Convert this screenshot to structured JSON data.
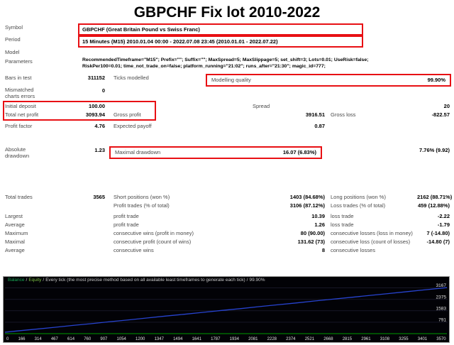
{
  "title": "GBPCHF Fix lot 2010-2022",
  "header": {
    "symbol": {
      "label": "Symbol",
      "value": "GBPCHF (Great Britain Pound vs Swiss Franc)"
    },
    "period": {
      "label": "Period",
      "value": "15 Minutes (M15) 2010.01.04 00:00 - 2022.07.08 23:45 (2010.01.01 - 2022.07.22)"
    },
    "model": {
      "label": "Model",
      "value": ""
    },
    "parameters": {
      "label": "Parameters",
      "line1": "RecommendedTimeframe=\"M15\"; Prefix=\"\"; Suffix=\"\"; MaxSpread=5; MaxSlippage=5; set_shift=3; Lots=0.01; UseRisk=false;",
      "line2": "RiskPer100=0.01; time_not_trade_on=false; platform_running=\"21:02\"; runs_after=\"21:30\"; magic_id=777;"
    }
  },
  "stats": {
    "bars_in_test": {
      "label": "Bars in test",
      "value": "311152"
    },
    "ticks_modelled": {
      "label": "Ticks modelled",
      "value": ""
    },
    "modelling_quality": {
      "label": "Modelling quality",
      "value": "99.90%"
    },
    "mismatched_charts_errors": {
      "label": "Mismatched charts errors",
      "value": "0"
    },
    "initial_deposit": {
      "label": "Initial deposit",
      "value": "100.00"
    },
    "spread": {
      "label": "Spread",
      "value": "20"
    },
    "total_net_profit": {
      "label": "Total net profit",
      "value": "3093.94"
    },
    "gross_profit": {
      "label": "Gross profit",
      "value": "3916.51"
    },
    "gross_loss": {
      "label": "Gross loss",
      "value": "-822.57"
    },
    "profit_factor": {
      "label": "Profit factor",
      "value": "4.76"
    },
    "expected_payoff": {
      "label": "Expected payoff",
      "value": "0.87"
    },
    "absolute_drawdown": {
      "label": "Absolute drawdown",
      "value": "1.23"
    },
    "maximal_drawdown": {
      "label": "Maximal drawdown",
      "value": "16.07 (6.83%)"
    },
    "relative_drawdown": {
      "value": "7.76% (9.92)"
    },
    "total_trades": {
      "label": "Total trades",
      "value": "3565"
    },
    "short_positions": {
      "label": "Short positions (won %)",
      "value": "1403 (84.68%)"
    },
    "long_positions": {
      "label": "Long positions (won %)",
      "value": "2162 (88.71%)"
    },
    "profit_trades": {
      "label": "Profit trades (% of total)",
      "value": "3106 (87.12%)"
    },
    "loss_trades": {
      "label": "Loss trades (% of total)",
      "value": "459 (12.88%)"
    },
    "largest": {
      "label": "Largest",
      "profit_label": "profit trade",
      "profit_value": "10.39",
      "loss_label": "loss trade",
      "loss_value": "-2.22"
    },
    "average_trade": {
      "label": "Average",
      "profit_label": "profit trade",
      "profit_value": "1.26",
      "loss_label": "loss trade",
      "loss_value": "-1.79"
    },
    "maximum_consecutive": {
      "label": "Maximum",
      "win_label": "consecutive wins (profit in money)",
      "win_value": "80 (90.00)",
      "loss_label": "consecutive losses (loss in money)",
      "loss_value": "7 (-14.80)"
    },
    "maximal_consecutive": {
      "label": "Maximal",
      "win_label": "consecutive profit (count of wins)",
      "win_value": "131.62 (73)",
      "loss_label": "consecutive loss (count of losses)",
      "loss_value": "-14.80 (7)"
    },
    "average_consecutive": {
      "label": "Average",
      "win_label": "consecutive wins",
      "win_value": "8",
      "loss_label": "consecutive losses",
      "loss_value": ""
    }
  },
  "chart_data": {
    "type": "line",
    "title": "Balance curve",
    "header": {
      "balance_label": "Balance",
      "sep": "/",
      "equity_label": "Equity",
      "method": "Every tick (the most precise method based on all available least timeframes to generate each tick)",
      "quality": "99.90%"
    },
    "series": [
      {
        "name": "Balance",
        "color": "#2743cf",
        "x": [
          0,
          100,
          250,
          400,
          550,
          700,
          850,
          1000,
          1150,
          1300,
          1450,
          1600,
          1750,
          1900,
          2050,
          2200,
          2350,
          2500,
          2650,
          2800,
          2950,
          3100,
          3250,
          3400,
          3570
        ],
        "y": [
          100,
          185,
          310,
          440,
          570,
          695,
          830,
          955,
          1090,
          1220,
          1345,
          1480,
          1610,
          1735,
          1870,
          2000,
          2130,
          2265,
          2395,
          2520,
          2655,
          2785,
          2915,
          3050,
          3194
        ]
      }
    ],
    "x_ticks": [
      0,
      166,
      314,
      467,
      614,
      760,
      907,
      1054,
      1200,
      1347,
      1494,
      1641,
      1787,
      1934,
      2081,
      2228,
      2374,
      2521,
      2668,
      2815,
      2961,
      3108,
      3255,
      3401,
      3570
    ],
    "y_ticks": [
      791,
      1583,
      2375,
      3167
    ],
    "xlim": [
      0,
      3570
    ],
    "ylim": [
      0,
      3300
    ],
    "grid": true,
    "legend_position": "top-left",
    "bg_color": "#020206",
    "grid_color": "#23233a",
    "axis_color": "#e6e6e6",
    "baseline_color": "#009c00"
  }
}
